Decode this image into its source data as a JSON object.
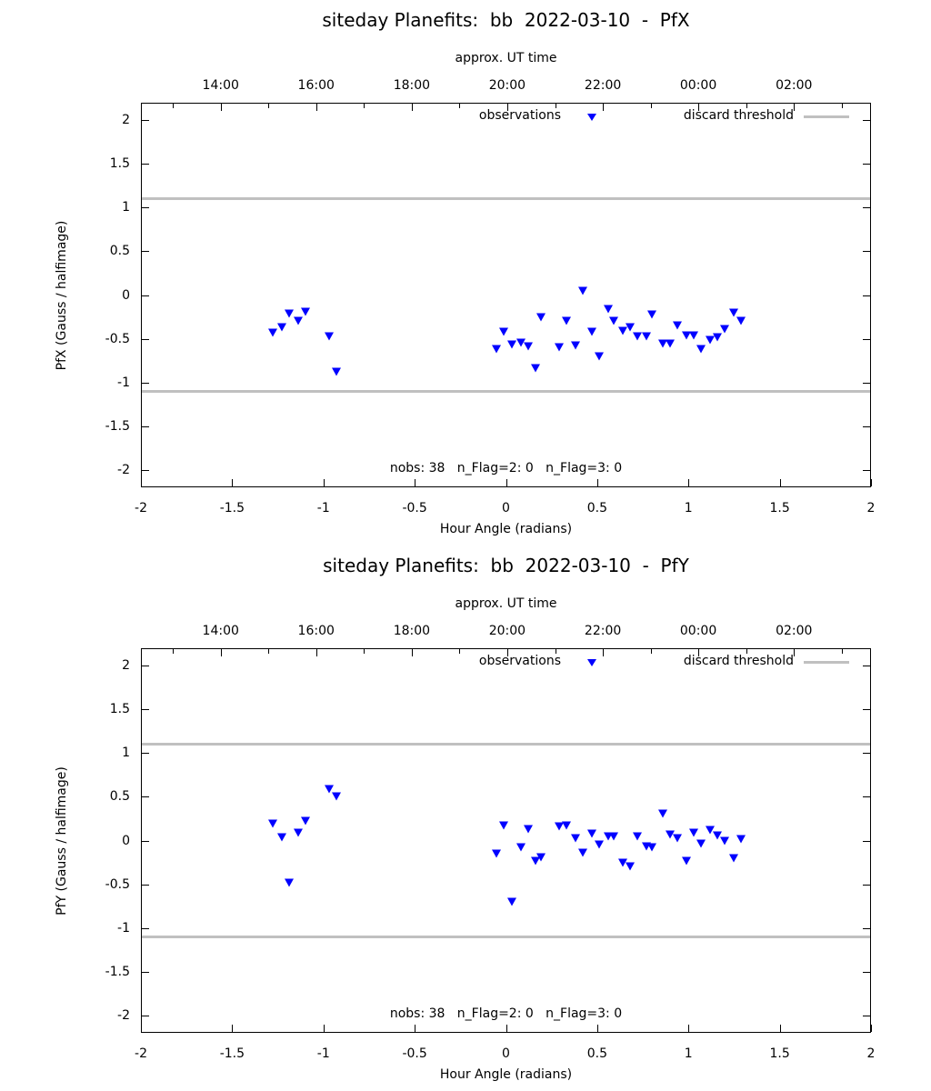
{
  "colors": {
    "marker": "#0000ff",
    "threshold": "#c0c0c0",
    "text": "#000000",
    "background": "#ffffff"
  },
  "chart_data": [
    {
      "type": "scatter",
      "title": "siteday Planefits:  bb  2022-03-10  -  PfX",
      "x2label": "approx. UT time",
      "xlabel": "Hour Angle (radians)",
      "ylabel": "PfX (Gauss / halfimage)",
      "xlim": [
        -2,
        2
      ],
      "ylim": [
        -2.2,
        2.2
      ],
      "grid": false,
      "legend_position": "top-inside",
      "annotation": "nobs: 38   n_Flag=2: 0   n_Flag=3: 0",
      "x_ticks": [
        {
          "v": -2,
          "label": "-2"
        },
        {
          "v": -1.5,
          "label": "-1.5"
        },
        {
          "v": -1,
          "label": "-1"
        },
        {
          "v": -0.5,
          "label": "-0.5"
        },
        {
          "v": 0,
          "label": "0"
        },
        {
          "v": 0.5,
          "label": "0.5"
        },
        {
          "v": 1,
          "label": "1"
        },
        {
          "v": 1.5,
          "label": "1.5"
        },
        {
          "v": 2,
          "label": "2"
        }
      ],
      "y_ticks": [
        {
          "v": 2,
          "label": "2"
        },
        {
          "v": 1.5,
          "label": "1.5"
        },
        {
          "v": 1,
          "label": "1"
        },
        {
          "v": 0.5,
          "label": "0.5"
        },
        {
          "v": 0,
          "label": "0"
        },
        {
          "v": -0.5,
          "label": "-0.5"
        },
        {
          "v": -1,
          "label": "-1"
        },
        {
          "v": -1.5,
          "label": "-1.5"
        },
        {
          "v": -2,
          "label": "-2"
        }
      ],
      "x2_ticks": [
        {
          "ha": -1.825,
          "label": ""
        },
        {
          "ha": -1.563,
          "label": "14:00"
        },
        {
          "ha": -1.302,
          "label": ""
        },
        {
          "ha": -1.04,
          "label": "16:00"
        },
        {
          "ha": -0.778,
          "label": ""
        },
        {
          "ha": -0.516,
          "label": "18:00"
        },
        {
          "ha": -0.255,
          "label": ""
        },
        {
          "ha": 0.007,
          "label": "20:00"
        },
        {
          "ha": 0.269,
          "label": ""
        },
        {
          "ha": 0.531,
          "label": "22:00"
        },
        {
          "ha": 0.793,
          "label": ""
        },
        {
          "ha": 1.054,
          "label": "00:00"
        },
        {
          "ha": 1.316,
          "label": ""
        },
        {
          "ha": 1.578,
          "label": "02:00"
        },
        {
          "ha": 1.84,
          "label": ""
        }
      ],
      "threshold": {
        "label": "discard threshold",
        "color": "#c0c0c0",
        "values": [
          1.1,
          -1.1
        ]
      },
      "series": [
        {
          "name": "observations",
          "marker": "triangle-down",
          "color": "#0000ff",
          "points": [
            [
              -1.28,
              -0.43
            ],
            [
              -1.23,
              -0.37
            ],
            [
              -1.19,
              -0.21
            ],
            [
              -1.14,
              -0.3
            ],
            [
              -1.1,
              -0.19
            ],
            [
              -0.97,
              -0.47
            ],
            [
              -0.93,
              -0.88
            ],
            [
              -0.05,
              -0.62
            ],
            [
              -0.01,
              -0.42
            ],
            [
              0.03,
              -0.57
            ],
            [
              0.08,
              -0.55
            ],
            [
              0.12,
              -0.59
            ],
            [
              0.16,
              -0.84
            ],
            [
              0.19,
              -0.25
            ],
            [
              0.29,
              -0.6
            ],
            [
              0.33,
              -0.3
            ],
            [
              0.38,
              -0.58
            ],
            [
              0.42,
              0.05
            ],
            [
              0.47,
              -0.42
            ],
            [
              0.51,
              -0.7
            ],
            [
              0.56,
              -0.16
            ],
            [
              0.59,
              -0.3
            ],
            [
              0.64,
              -0.41
            ],
            [
              0.68,
              -0.37
            ],
            [
              0.72,
              -0.47
            ],
            [
              0.77,
              -0.47
            ],
            [
              0.8,
              -0.22
            ],
            [
              0.86,
              -0.56
            ],
            [
              0.9,
              -0.56
            ],
            [
              0.94,
              -0.35
            ],
            [
              0.99,
              -0.46
            ],
            [
              1.03,
              -0.46
            ],
            [
              1.07,
              -0.62
            ],
            [
              1.12,
              -0.52
            ],
            [
              1.16,
              -0.48
            ],
            [
              1.2,
              -0.39
            ],
            [
              1.25,
              -0.2
            ],
            [
              1.29,
              -0.3
            ]
          ]
        }
      ]
    },
    {
      "type": "scatter",
      "title": "siteday Planefits:  bb  2022-03-10  -  PfY",
      "x2label": "approx. UT time",
      "xlabel": "Hour Angle (radians)",
      "ylabel": "PfY (Gauss / halfimage)",
      "xlim": [
        -2,
        2
      ],
      "ylim": [
        -2.2,
        2.2
      ],
      "grid": false,
      "legend_position": "top-inside",
      "annotation": "nobs: 38   n_Flag=2: 0   n_Flag=3: 0",
      "x_ticks": [
        {
          "v": -2,
          "label": "-2"
        },
        {
          "v": -1.5,
          "label": "-1.5"
        },
        {
          "v": -1,
          "label": "-1"
        },
        {
          "v": -0.5,
          "label": "-0.5"
        },
        {
          "v": 0,
          "label": "0"
        },
        {
          "v": 0.5,
          "label": "0.5"
        },
        {
          "v": 1,
          "label": "1"
        },
        {
          "v": 1.5,
          "label": "1.5"
        },
        {
          "v": 2,
          "label": "2"
        }
      ],
      "y_ticks": [
        {
          "v": 2,
          "label": "2"
        },
        {
          "v": 1.5,
          "label": "1.5"
        },
        {
          "v": 1,
          "label": "1"
        },
        {
          "v": 0.5,
          "label": "0.5"
        },
        {
          "v": 0,
          "label": "0"
        },
        {
          "v": -0.5,
          "label": "-0.5"
        },
        {
          "v": -1,
          "label": "-1"
        },
        {
          "v": -1.5,
          "label": "-1.5"
        },
        {
          "v": -2,
          "label": "-2"
        }
      ],
      "x2_ticks": [
        {
          "ha": -1.825,
          "label": ""
        },
        {
          "ha": -1.563,
          "label": "14:00"
        },
        {
          "ha": -1.302,
          "label": ""
        },
        {
          "ha": -1.04,
          "label": "16:00"
        },
        {
          "ha": -0.778,
          "label": ""
        },
        {
          "ha": -0.516,
          "label": "18:00"
        },
        {
          "ha": -0.255,
          "label": ""
        },
        {
          "ha": 0.007,
          "label": "20:00"
        },
        {
          "ha": 0.269,
          "label": ""
        },
        {
          "ha": 0.531,
          "label": "22:00"
        },
        {
          "ha": 0.793,
          "label": ""
        },
        {
          "ha": 1.054,
          "label": "00:00"
        },
        {
          "ha": 1.316,
          "label": ""
        },
        {
          "ha": 1.578,
          "label": "02:00"
        },
        {
          "ha": 1.84,
          "label": ""
        }
      ],
      "threshold": {
        "label": "discard threshold",
        "color": "#c0c0c0",
        "values": [
          1.1,
          -1.1
        ]
      },
      "series": [
        {
          "name": "observations",
          "marker": "triangle-down",
          "color": "#0000ff",
          "points": [
            [
              -1.28,
              0.19
            ],
            [
              -1.23,
              0.04
            ],
            [
              -1.19,
              -0.48
            ],
            [
              -1.14,
              0.09
            ],
            [
              -1.1,
              0.22
            ],
            [
              -0.97,
              0.59
            ],
            [
              -0.93,
              0.5
            ],
            [
              -0.05,
              -0.15
            ],
            [
              -0.01,
              0.17
            ],
            [
              0.03,
              -0.7
            ],
            [
              0.08,
              -0.08
            ],
            [
              0.12,
              0.13
            ],
            [
              0.16,
              -0.23
            ],
            [
              0.19,
              -0.19
            ],
            [
              0.29,
              0.16
            ],
            [
              0.33,
              0.17
            ],
            [
              0.38,
              0.03
            ],
            [
              0.42,
              -0.14
            ],
            [
              0.47,
              0.08
            ],
            [
              0.51,
              -0.05
            ],
            [
              0.56,
              0.05
            ],
            [
              0.59,
              0.05
            ],
            [
              0.64,
              -0.26
            ],
            [
              0.68,
              -0.3
            ],
            [
              0.72,
              0.05
            ],
            [
              0.77,
              -0.07
            ],
            [
              0.8,
              -0.08
            ],
            [
              0.86,
              0.31
            ],
            [
              0.9,
              0.07
            ],
            [
              0.94,
              0.03
            ],
            [
              0.99,
              -0.23
            ],
            [
              1.03,
              0.09
            ],
            [
              1.07,
              -0.04
            ],
            [
              1.12,
              0.12
            ],
            [
              1.16,
              0.06
            ],
            [
              1.2,
              0
            ],
            [
              1.25,
              -0.2
            ],
            [
              1.29,
              0.02
            ]
          ]
        }
      ]
    }
  ]
}
